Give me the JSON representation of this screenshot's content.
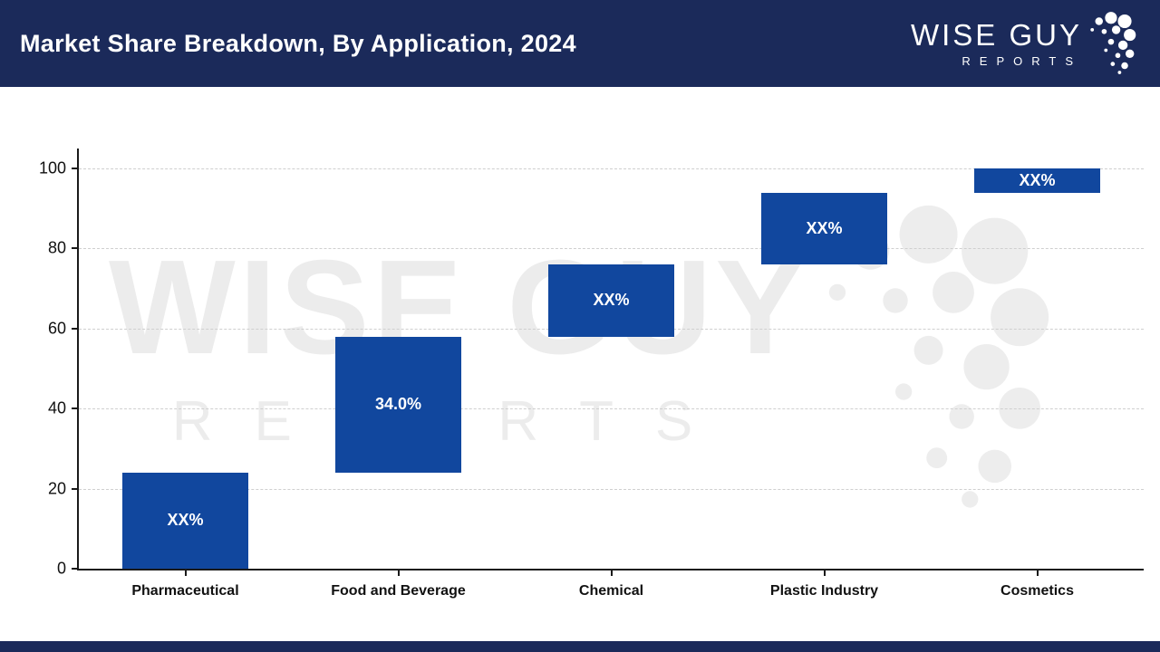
{
  "header": {
    "title": "Market Share Breakdown, By Application, 2024",
    "brand": {
      "name": "WISE GUY",
      "sub": "REPORTS"
    }
  },
  "watermark": {
    "name": "WISE GUY",
    "sub": "REPORTS"
  },
  "colors": {
    "header_bg": "#1B2A5A",
    "footer_bg": "#1B2A5A",
    "bar": "#11479E",
    "watermark": "#ECECEC"
  },
  "chart_data": {
    "type": "bar",
    "variant": "floating-segment-waterfall",
    "title": "Market Share Breakdown, By Application, 2024",
    "categories": [
      "Pharmaceutical",
      "Food and Beverage",
      "Chemical",
      "Plastic Industry",
      "Cosmetics"
    ],
    "segments": [
      {
        "category": "Pharmaceutical",
        "start": 0,
        "end": 24,
        "label": "XX%"
      },
      {
        "category": "Food and Beverage",
        "start": 24,
        "end": 58,
        "label": "34.0%"
      },
      {
        "category": "Chemical",
        "start": 58,
        "end": 76,
        "label": "XX%"
      },
      {
        "category": "Plastic Industry",
        "start": 76,
        "end": 94,
        "label": "XX%"
      },
      {
        "category": "Cosmetics",
        "start": 94,
        "end": 100,
        "label": "XX%"
      }
    ],
    "xlabel": "",
    "ylabel": "",
    "yticks": [
      0,
      20,
      40,
      60,
      80,
      100
    ],
    "ylim": [
      0,
      105
    ],
    "grid": "horizontal-dashed",
    "legend": "none",
    "bar_color": "#11479E",
    "bar_label_color": "#FFFFFF"
  }
}
